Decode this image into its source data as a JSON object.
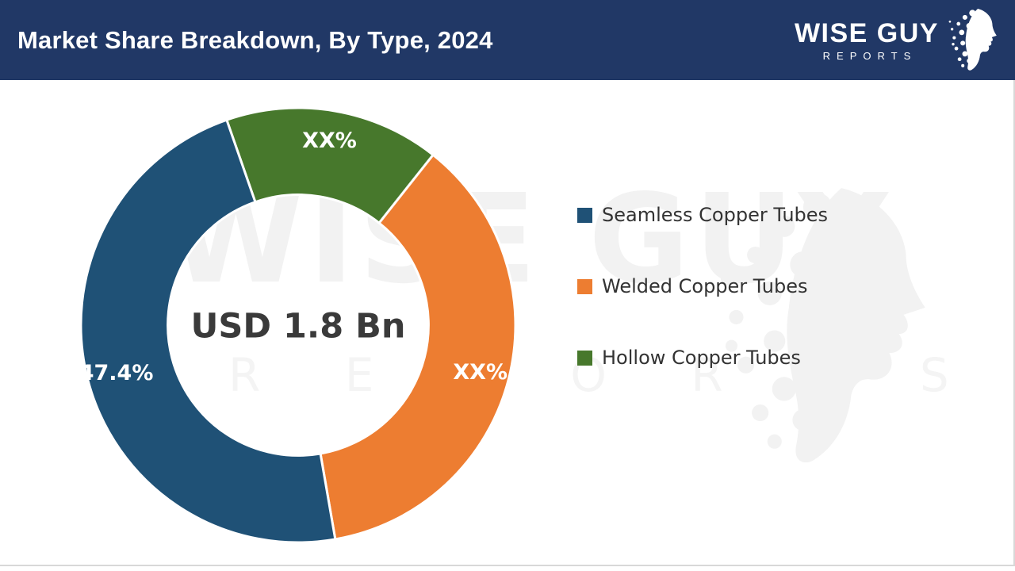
{
  "header": {
    "title": "Market Share Breakdown, By Type, 2024",
    "logo": {
      "brand": "WISE GUY",
      "subtitle": "REPORTS"
    }
  },
  "chart_data": {
    "type": "donut",
    "title": "Market Share Breakdown, By Type, 2024",
    "center_label": "USD 1.8 Bn",
    "start_angle_deg": -19.2,
    "direction": "clockwise",
    "inner_radius_ratio": 0.6,
    "legend_position": "right",
    "segments": [
      {
        "name": "Hollow Copper Tubes",
        "label": "XX%",
        "percent": 16.0,
        "color": "#47782C",
        "percent_estimated_from_arc": true
      },
      {
        "name": "Welded Copper Tubes",
        "label": "XX%",
        "percent": 36.6,
        "color": "#ED7D31",
        "percent_estimated_from_arc": true
      },
      {
        "name": "Seamless Copper Tubes",
        "label": "47.4%",
        "percent": 47.4,
        "color": "#1F5176",
        "percent_estimated_from_arc": false
      }
    ]
  },
  "legend": {
    "items": [
      {
        "label": "Seamless Copper Tubes",
        "color": "#1F5176"
      },
      {
        "label": "Welded Copper Tubes",
        "color": "#ED7D31"
      },
      {
        "label": "Hollow Copper Tubes",
        "color": "#47782C"
      }
    ]
  },
  "watermark": {
    "line1": "WISE GUY",
    "line2": "R E P O R T S"
  },
  "colors": {
    "header_bg": "#213866",
    "legend_text": "#333333",
    "center_text": "#3A3A3A",
    "border_line": "#D8D8D8",
    "watermark": "#F2F2F2"
  }
}
